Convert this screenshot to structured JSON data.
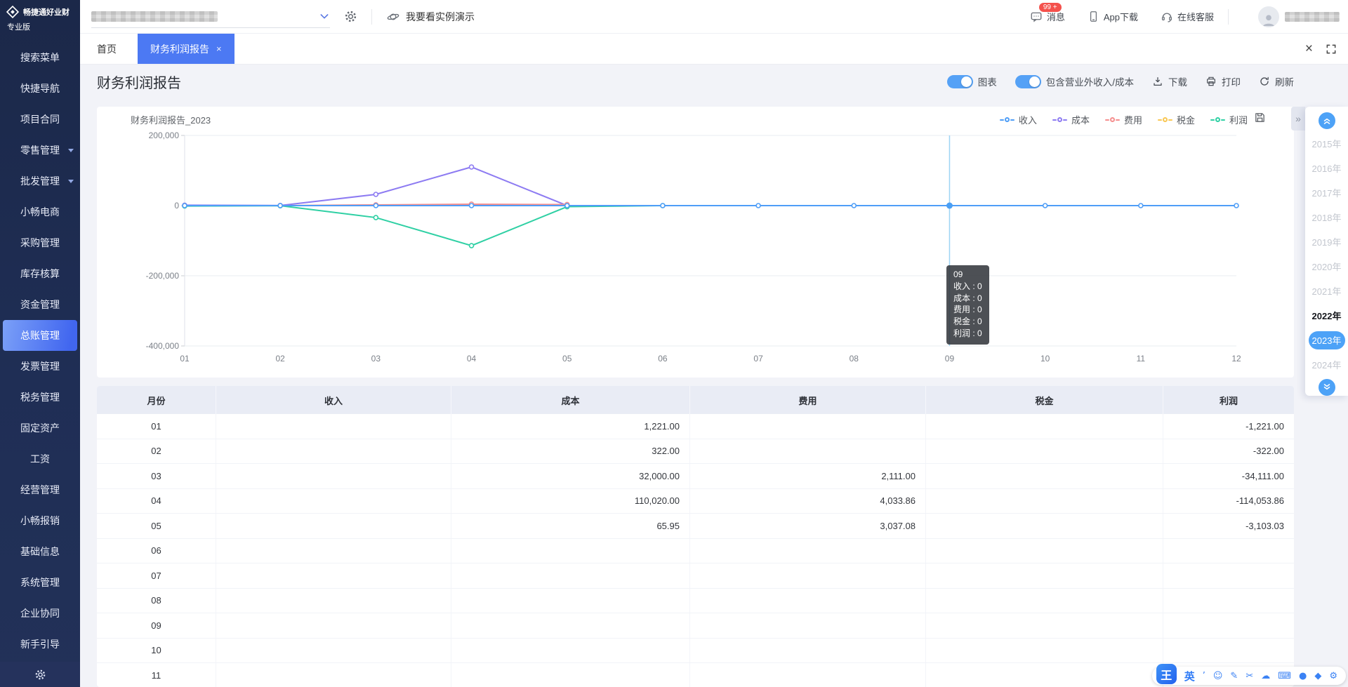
{
  "app": {
    "logo_title": "畅捷通好业财",
    "logo_subtitle": "专业版",
    "demo_text": "我要看实例演示",
    "messages_label": "消息",
    "messages_badge": "99 +",
    "app_download_label": "App下载",
    "support_label": "在线客服"
  },
  "sidebar": {
    "items": [
      {
        "label": "搜索菜单"
      },
      {
        "label": "快捷导航"
      },
      {
        "label": "项目合同"
      },
      {
        "label": "零售管理",
        "arrow": true
      },
      {
        "label": "批发管理",
        "arrow": true
      },
      {
        "label": "小畅电商"
      },
      {
        "label": "采购管理"
      },
      {
        "label": "库存核算"
      },
      {
        "label": "资金管理"
      },
      {
        "label": "总账管理",
        "active": true
      },
      {
        "label": "发票管理"
      },
      {
        "label": "税务管理"
      },
      {
        "label": "固定资产"
      },
      {
        "label": "工资"
      },
      {
        "label": "经营管理"
      },
      {
        "label": "小畅报销"
      },
      {
        "label": "基础信息"
      },
      {
        "label": "系统管理"
      },
      {
        "label": "企业协同"
      },
      {
        "label": "新手引导"
      }
    ]
  },
  "tabs": {
    "items": [
      {
        "label": "首页",
        "active": false
      },
      {
        "label": "财务利润报告",
        "active": true
      }
    ]
  },
  "page": {
    "title": "财务利润报告"
  },
  "toolbar": {
    "chart_toggle": "图表",
    "include_toggle": "包含营业外收入/成本",
    "download": "下载",
    "print": "打印",
    "refresh": "刷新"
  },
  "chart_data": {
    "type": "line",
    "title": "财务利润报告_2023",
    "x": [
      "01",
      "02",
      "03",
      "04",
      "05",
      "06",
      "07",
      "08",
      "09",
      "10",
      "11",
      "12"
    ],
    "ylim": [
      -400000,
      200000
    ],
    "yticks": [
      200000,
      0,
      -200000,
      -400000
    ],
    "ytick_labels": [
      "200,000",
      "0",
      "-200,000",
      "-400,000"
    ],
    "grid": true,
    "legend_position": "top-right",
    "series": [
      {
        "name": "收入",
        "color": "#4f9ef7",
        "values": [
          0,
          0,
          0,
          0,
          0,
          0,
          0,
          0,
          0,
          0,
          0,
          0
        ]
      },
      {
        "name": "成本",
        "color": "#8d7bf2",
        "values": [
          1221,
          322,
          32000,
          110020,
          65.95,
          null,
          null,
          null,
          null,
          null,
          null,
          null
        ]
      },
      {
        "name": "费用",
        "color": "#f58e8e",
        "values": [
          0,
          0,
          2111,
          4033.86,
          3037.08,
          null,
          null,
          null,
          null,
          null,
          null,
          null
        ]
      },
      {
        "name": "税金",
        "color": "#f9c753",
        "values": [
          null,
          null,
          null,
          null,
          null,
          null,
          null,
          null,
          null,
          null,
          null,
          null
        ]
      },
      {
        "name": "利润",
        "color": "#2fd0a4",
        "values": [
          -1221,
          -322,
          -34111,
          -114053.86,
          -3103.03,
          0,
          null,
          null,
          null,
          null,
          null,
          null
        ]
      }
    ],
    "hover": {
      "x_index": 8,
      "label": "09"
    }
  },
  "tooltip": {
    "title": "09",
    "lines": [
      "收入 : 0",
      "成本 : 0",
      "费用 : 0",
      "税金 : 0",
      "利润 : 0"
    ]
  },
  "years": {
    "list": [
      {
        "label": "2015年",
        "state": "muted"
      },
      {
        "label": "2016年",
        "state": "muted"
      },
      {
        "label": "2017年",
        "state": "muted"
      },
      {
        "label": "2018年",
        "state": "muted"
      },
      {
        "label": "2019年",
        "state": "muted"
      },
      {
        "label": "2020年",
        "state": "muted"
      },
      {
        "label": "2021年",
        "state": "muted"
      },
      {
        "label": "2022年",
        "state": "strong"
      },
      {
        "label": "2023年",
        "state": "selected"
      },
      {
        "label": "2024年",
        "state": "muted"
      }
    ]
  },
  "table": {
    "headers": [
      "月份",
      "收入",
      "成本",
      "费用",
      "税金",
      "利润"
    ],
    "rows": [
      [
        "01",
        "",
        "1,221.00",
        "",
        "",
        "-1,221.00"
      ],
      [
        "02",
        "",
        "322.00",
        "",
        "",
        "-322.00"
      ],
      [
        "03",
        "",
        "32,000.00",
        "2,111.00",
        "",
        "-34,111.00"
      ],
      [
        "04",
        "",
        "110,020.00",
        "4,033.86",
        "",
        "-114,053.86"
      ],
      [
        "05",
        "",
        "65.95",
        "3,037.08",
        "",
        "-3,103.03"
      ],
      [
        "06",
        "",
        "",
        "",
        "",
        ""
      ],
      [
        "07",
        "",
        "",
        "",
        "",
        ""
      ],
      [
        "08",
        "",
        "",
        "",
        "",
        ""
      ],
      [
        "09",
        "",
        "",
        "",
        "",
        ""
      ],
      [
        "10",
        "",
        "",
        "",
        "",
        ""
      ],
      [
        "11",
        "",
        "",
        "",
        "",
        ""
      ]
    ]
  },
  "ime": {
    "primary_label": "王",
    "lang_label": "英",
    "icons": [
      {
        "name": "comma-icon",
        "glyph": "’"
      },
      {
        "name": "smiley-icon",
        "glyph": "☺"
      },
      {
        "name": "pencil-icon",
        "glyph": "✎"
      },
      {
        "name": "scissors-icon",
        "glyph": "✂"
      },
      {
        "name": "cloud-icon",
        "glyph": "☁"
      },
      {
        "name": "keyboard-icon",
        "glyph": "⌨"
      },
      {
        "name": "user-icon",
        "glyph": "●"
      },
      {
        "name": "shirt-icon",
        "glyph": "◆"
      },
      {
        "name": "gear-icon",
        "glyph": "⚙"
      }
    ]
  }
}
